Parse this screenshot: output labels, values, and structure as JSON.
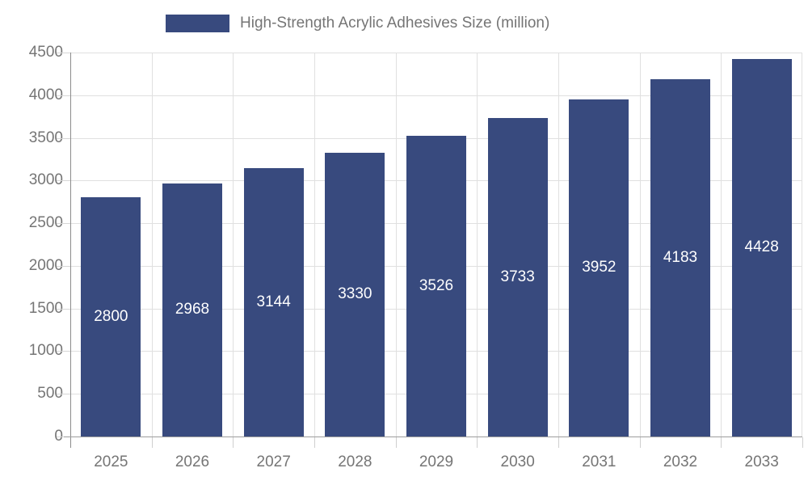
{
  "chart_data": {
    "type": "bar",
    "title": "High-Strength Acrylic Adhesives Size (million)",
    "legend_entries": [
      "High-Strength Acrylic Adhesives Size (million)"
    ],
    "legend_position": "top",
    "categories": [
      "2025",
      "2026",
      "2027",
      "2028",
      "2029",
      "2030",
      "2031",
      "2032",
      "2033"
    ],
    "values": [
      2800,
      2968,
      3144,
      3330,
      3526,
      3733,
      3952,
      4183,
      4428
    ],
    "xlabel": "",
    "ylabel": "",
    "ylim": [
      0,
      4500
    ],
    "yticks": [
      0,
      500,
      1000,
      1500,
      2000,
      2500,
      3000,
      3500,
      4000,
      4500
    ],
    "grid": true,
    "value_labels_shown": true,
    "colors": {
      "bar": "#384A7E",
      "value_label": "#FFFFFF",
      "grid": "#E0E0E0",
      "axis_line": "#9E9E9E",
      "axis_text": "#757575"
    }
  }
}
